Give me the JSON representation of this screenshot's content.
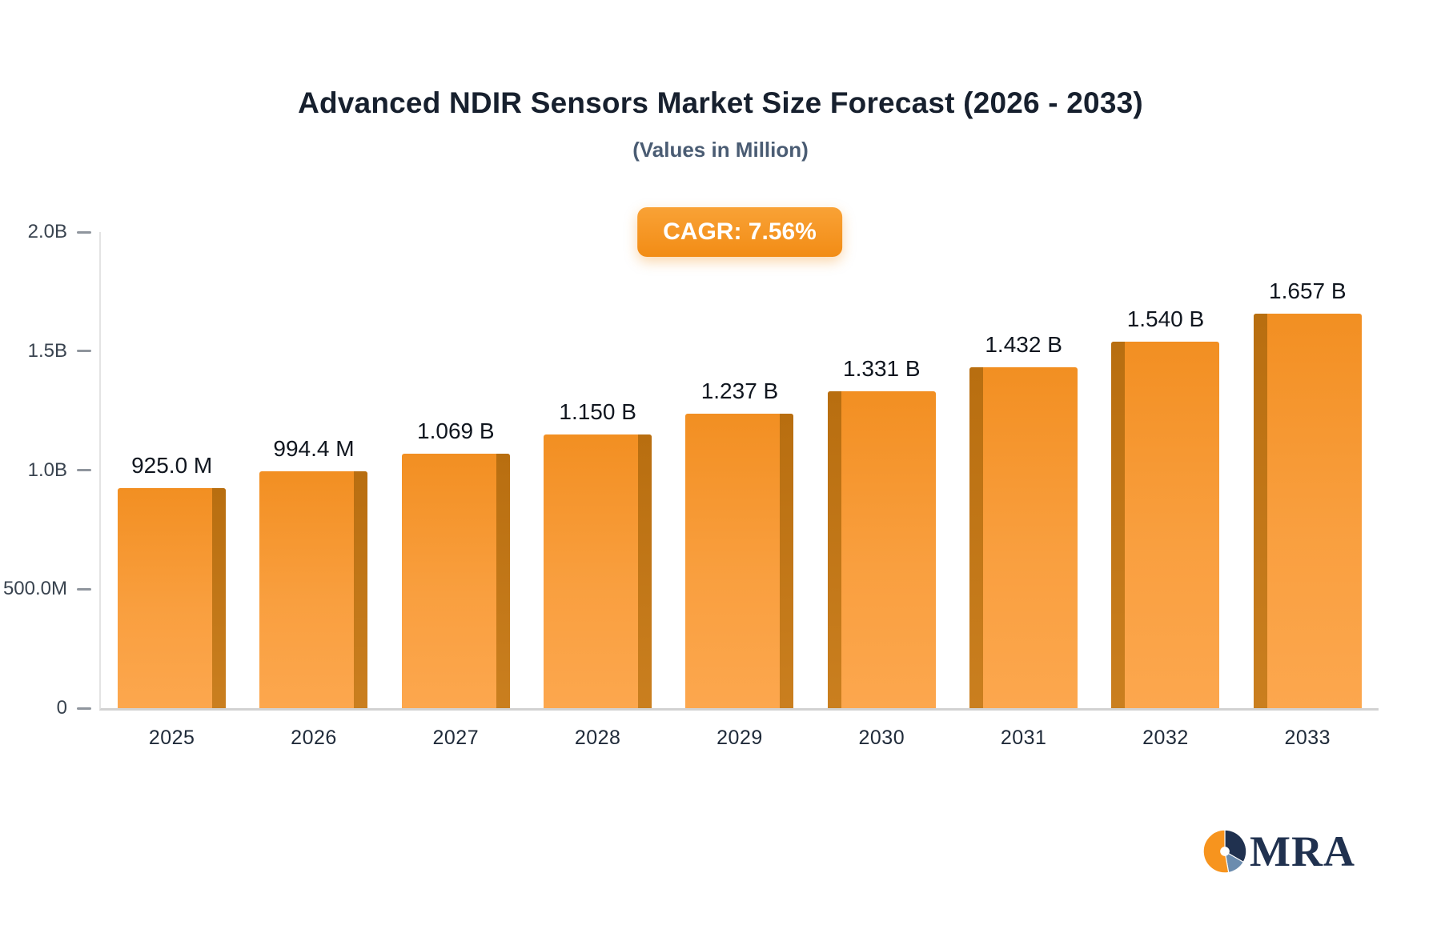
{
  "page": {
    "title": "Advanced NDIR Sensors Market Size Forecast (2026 - 2033)",
    "subtitle": "(Values in Million)",
    "badge_label": "CAGR: 7.56%"
  },
  "colors": {
    "accent_orange": "#f7941e",
    "badge_bg": "#f28c15",
    "badge_top": "#f9a236",
    "bar_front_top": "#f28f22",
    "bar_front_bottom": "#fca74e",
    "bar_side": "#b86e10",
    "title_text": "#17202e",
    "subtitle_text": "#4a5c73",
    "logo_navy": "#20314f",
    "logo_blue": "#6b8cae"
  },
  "chart_data": {
    "type": "bar",
    "title": "Advanced NDIR Sensors Market Size Forecast (2026 - 2033)",
    "subtitle": "(Values in Million)",
    "unit": "USD Million",
    "annotation": "CAGR: 7.56%",
    "categories": [
      "2025",
      "2026",
      "2027",
      "2028",
      "2029",
      "2030",
      "2031",
      "2032",
      "2033"
    ],
    "values": [
      925.0,
      994.4,
      1069,
      1150,
      1237,
      1331,
      1432,
      1540,
      1657
    ],
    "value_labels": [
      "925.0 M",
      "994.4 M",
      "1.069 B",
      "1.150 B",
      "1.237 B",
      "1.331 B",
      "1.432 B",
      "1.540 B",
      "1.657 B"
    ],
    "xlabel": "",
    "ylabel": "",
    "ylim": [
      0,
      2000
    ],
    "yticks": [
      {
        "value": 0,
        "label": "0"
      },
      {
        "value": 500,
        "label": "500.0M"
      },
      {
        "value": 1000,
        "label": "1.0B"
      },
      {
        "value": 1500,
        "label": "1.5B"
      },
      {
        "value": 2000,
        "label": "2.0B"
      }
    ],
    "grid": false,
    "legend": false
  },
  "logo": {
    "text": "MRA"
  }
}
